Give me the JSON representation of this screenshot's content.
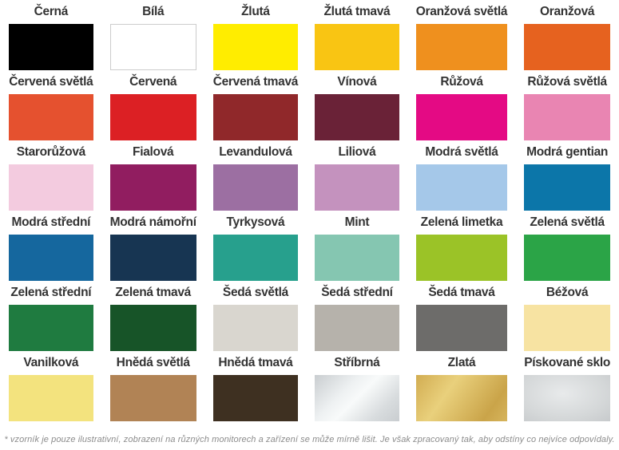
{
  "styles": {
    "label_color": "#333333",
    "footnote_color": "#8c8c8c",
    "white_swatch_border": "#cccccc",
    "background": "#ffffff"
  },
  "footnote": {
    "text": "* vzorník je pouze ilustrativní, zobrazení na různých monitorech a zařízení se může mírně lišit. Je však zpracovaný tak, aby odstíny co nejvíce odpovídaly."
  },
  "swatches": [
    {
      "label": "Černá",
      "color": "#000000"
    },
    {
      "label": "Bílá",
      "color": "#ffffff",
      "border": "#cccccc"
    },
    {
      "label": "Žlutá",
      "color": "#ffed00"
    },
    {
      "label": "Žlutá tmavá",
      "color": "#f9c513"
    },
    {
      "label": "Oranžová světlá",
      "color": "#ef901e"
    },
    {
      "label": "Oranžová",
      "color": "#e6621f"
    },
    {
      "label": "Červená světlá",
      "color": "#e5512f"
    },
    {
      "label": "Červená",
      "color": "#dc2024"
    },
    {
      "label": "Červená tmavá",
      "color": "#90282a"
    },
    {
      "label": "Vínová",
      "color": "#6a2237"
    },
    {
      "label": "Růžová",
      "color": "#e40a84"
    },
    {
      "label": "Růžová světlá",
      "color": "#e985b2"
    },
    {
      "label": "Starorůžová",
      "color": "#f3cbdf"
    },
    {
      "label": "Fialová",
      "color": "#911d60"
    },
    {
      "label": "Levandulová",
      "color": "#9c6fa2"
    },
    {
      "label": "Liliová",
      "color": "#c492be"
    },
    {
      "label": "Modrá světlá",
      "color": "#a5c8e9"
    },
    {
      "label": "Modrá gentian",
      "color": "#0c76a9"
    },
    {
      "label": "Modrá střední",
      "color": "#15679e"
    },
    {
      "label": "Modrá námořní",
      "color": "#173552"
    },
    {
      "label": "Tyrkysová",
      "color": "#27a08d"
    },
    {
      "label": "Mint",
      "color": "#85c6b1"
    },
    {
      "label": "Zelená limetka",
      "color": "#9bc327"
    },
    {
      "label": "Zelená světlá",
      "color": "#2ba447"
    },
    {
      "label": "Zelená střední",
      "color": "#1f7b40"
    },
    {
      "label": "Zelená tmavá",
      "color": "#175428"
    },
    {
      "label": "Šedá světlá",
      "color": "#d9d6cf"
    },
    {
      "label": "Šedá střední",
      "color": "#b6b2ab"
    },
    {
      "label": "Šedá tmavá",
      "color": "#6d6c6a"
    },
    {
      "label": "Béžová",
      "color": "#f7e3a2"
    },
    {
      "label": "Vanilková",
      "color": "#f3e37e"
    },
    {
      "label": "Hnědá světlá",
      "color": "#b18355"
    },
    {
      "label": "Hnědá tmavá",
      "color": "#3e3021"
    },
    {
      "label": "Stříbrná",
      "gradient": "linear-gradient(135deg, #c9cdd0 0%, #eef1f2 35%, #f8fafa 50%, #d8dcde 78%, #c9cdd0 100%)"
    },
    {
      "label": "Zlatá",
      "gradient": "linear-gradient(125deg, #d2ad52 0%, #e9d07c 35%, #caa449 80%, #d6b45c 100%)"
    },
    {
      "label": "Pískované sklo",
      "gradient": "radial-gradient(ellipse at 45% 40%, #e8eaeb 0%, #d4d7d8 65%, #c7cacc 100%)"
    }
  ]
}
